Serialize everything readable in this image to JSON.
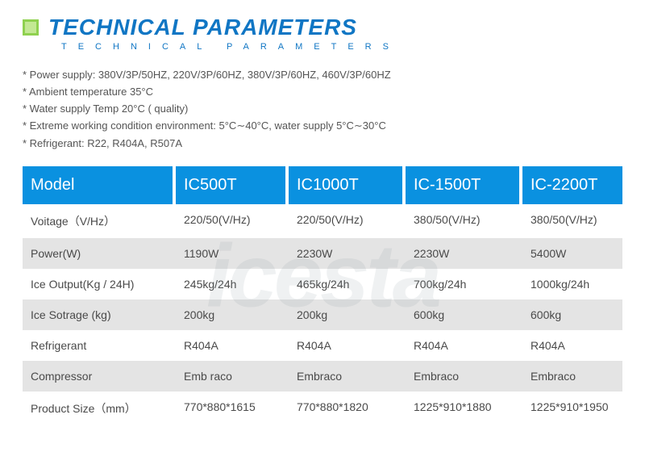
{
  "header": {
    "title": "TECHNICAL PARAMETERS",
    "subtitle": "TECHNICAL PARAMETERS"
  },
  "notes": [
    "Power supply: 380V/3P/50HZ, 220V/3P/60HZ, 380V/3P/60HZ, 460V/3P/60HZ",
    "Ambient temperature 35°C",
    "Water supply Temp 20°C ( quality)",
    "Extreme working condition environment: 5°C∼40°C, water supply 5°C∼30°C",
    "Refrigerant: R22, R404A, R507A"
  ],
  "table": {
    "columns": [
      "Model",
      "IC500T",
      "IC1000T",
      "IC-1500T",
      "IC-2200T"
    ],
    "rows": [
      {
        "label": "Voitage（V/Hz）",
        "values": [
          "220/50(V/Hz)",
          "220/50(V/Hz)",
          "380/50(V/Hz)",
          "380/50(V/Hz)"
        ]
      },
      {
        "label": "Power(W)",
        "values": [
          "1190W",
          "2230W",
          "2230W",
          "5400W"
        ]
      },
      {
        "label": "Ice Output(Kg / 24H)",
        "values": [
          "245kg/24h",
          "465kg/24h",
          "700kg/24h",
          "1000kg/24h"
        ]
      },
      {
        "label": "Ice Sotrage (kg)",
        "values": [
          "200kg",
          "200kg",
          "600kg",
          "600kg"
        ]
      },
      {
        "label": "Refrigerant",
        "values": [
          "R404A",
          "R404A",
          "R404A",
          "R404A"
        ]
      },
      {
        "label": "Compressor",
        "values": [
          "Emb raco",
          "Embraco",
          "Embraco",
          "Embraco"
        ]
      },
      {
        "label": "Product Size（mm）",
        "values": [
          "770*880*1615",
          "770*880*1820",
          "1225*910*1880",
          "1225*910*1950"
        ]
      }
    ]
  },
  "watermark": "icesta",
  "style": {
    "header_bg": "#0a91e0",
    "header_text": "#ffffff",
    "row_odd_bg": "#ffffff",
    "row_even_bg": "#e4e4e4",
    "title_color": "#1076c4",
    "icon_border": "#8fd14f",
    "icon_fill": "#c3e894",
    "note_color": "#555555",
    "cell_text": "#4a4a4a"
  }
}
